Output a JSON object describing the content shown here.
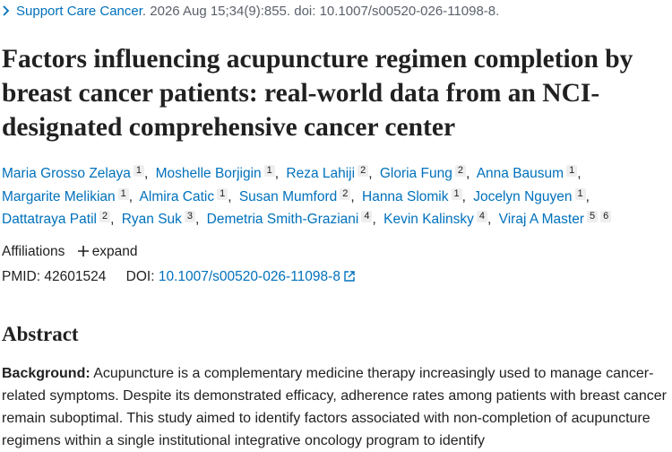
{
  "citation": {
    "journal": "Support Care Cancer",
    "details": ". 2026 Aug 15;34(9):855. doi: 10.1007/s00520-026-11098-8."
  },
  "title": "Factors influencing acupuncture regimen completion by breast cancer patients: real-world data from an NCI-designated comprehensive cancer center",
  "author_separator": ",",
  "authors": [
    {
      "name": "Maria Grosso Zelaya",
      "affiliations": [
        "1"
      ]
    },
    {
      "name": "Moshelle Borjigin",
      "affiliations": [
        "1"
      ]
    },
    {
      "name": "Reza Lahiji",
      "affiliations": [
        "2"
      ]
    },
    {
      "name": "Gloria Fung",
      "affiliations": [
        "2"
      ]
    },
    {
      "name": "Anna Bausum",
      "affiliations": [
        "1"
      ]
    },
    {
      "name": "Margarite Melikian",
      "affiliations": [
        "1"
      ]
    },
    {
      "name": "Almira Catic",
      "affiliations": [
        "1"
      ]
    },
    {
      "name": "Susan Mumford",
      "affiliations": [
        "2"
      ]
    },
    {
      "name": "Hanna Slomik",
      "affiliations": [
        "1"
      ]
    },
    {
      "name": "Jocelyn Nguyen",
      "affiliations": [
        "1"
      ]
    },
    {
      "name": "Dattatraya Patil",
      "affiliations": [
        "2"
      ]
    },
    {
      "name": "Ryan Suk",
      "affiliations": [
        "3"
      ]
    },
    {
      "name": "Demetria Smith-Graziani",
      "affiliations": [
        "4"
      ]
    },
    {
      "name": "Kevin Kalinsky",
      "affiliations": [
        "4"
      ]
    },
    {
      "name": "Viraj A Master",
      "affiliations": [
        "5",
        "6"
      ]
    }
  ],
  "affiliations": {
    "label": "Affiliations",
    "expand": "expand"
  },
  "identifiers": {
    "pmid_label": "PMID:",
    "pmid": "42601524",
    "doi_label": "DOI:",
    "doi": "10.1007/s00520-026-11098-8"
  },
  "abstract": {
    "heading": "Abstract",
    "background_label": "Background:",
    "background": "Acupuncture is a complementary medicine therapy increasingly used to manage cancer-related symptoms. Despite its demonstrated efficacy, adherence rates among patients with breast cancer remain suboptimal. This study aimed to identify factors associated with non-completion of acupuncture regimens within a single institutional integrative oncology program to identify"
  }
}
